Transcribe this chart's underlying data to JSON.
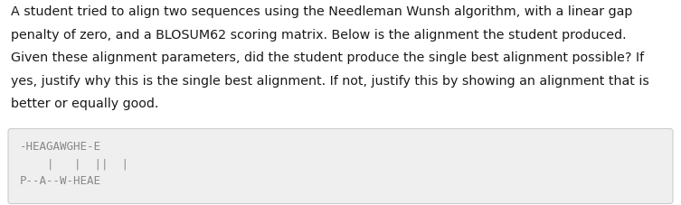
{
  "paragraph_lines": [
    "A student tried to align two sequences using the Needleman Wunsh algorithm, with a linear gap",
    "penalty of zero, and a BLOSUM62 scoring matrix. Below is the alignment the student produced.",
    "Given these alignment parameters, did the student produce the single best alignment possible? If",
    "yes, justify why this is the single best alignment. If not, justify this by showing an alignment that is",
    "better or equally good."
  ],
  "seq1": "-HEAGAWGHE-E",
  "pipes": "    |   |  ||  |",
  "seq2": "P--A--W-HEAE",
  "box_bg": "#efefef",
  "box_edge": "#cccccc",
  "text_color": "#1a1a1a",
  "mono_color": "#888888",
  "bg_color": "#ffffff",
  "font_size_para": 10.3,
  "font_size_mono": 9.0,
  "fig_width": 7.53,
  "fig_height": 2.27
}
